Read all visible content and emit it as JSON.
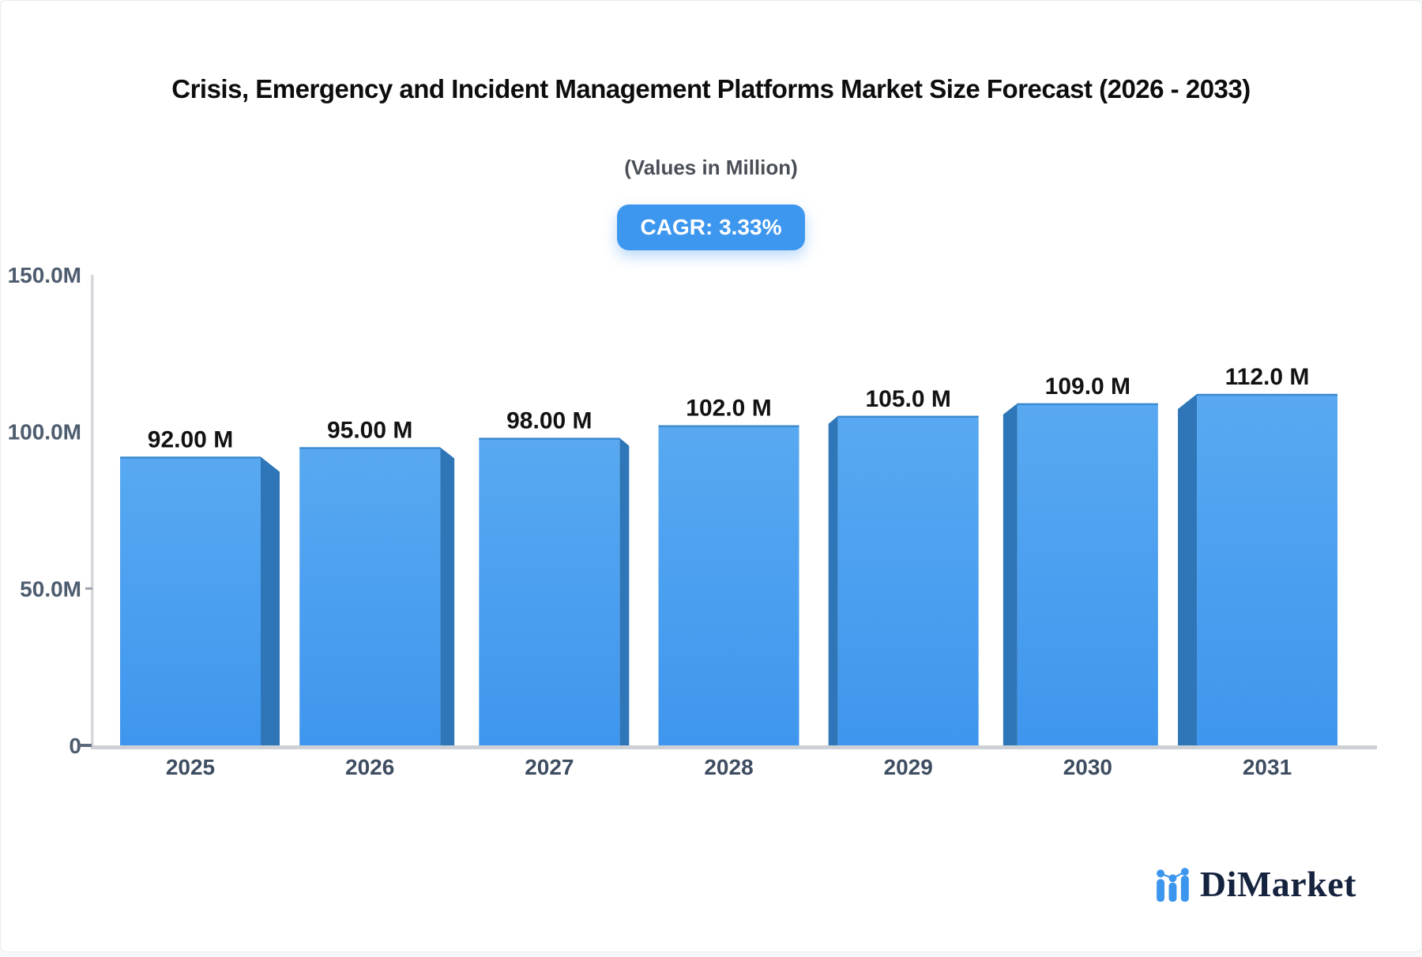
{
  "page": {
    "title": "Crisis, Emergency and Incident Management Platforms Market Size Forecast (2026 - 2033)",
    "subtitle": "(Values in Million)",
    "cagr_label": "CAGR: 3.33%"
  },
  "logo": {
    "text": "DiMarket",
    "icon": "bar-chart-logo-icon"
  },
  "colors": {
    "accent": "#3e97ef",
    "bar_gradient_top": "#58a9f1",
    "bar_gradient_bottom": "#3f96ee",
    "bar_side": "#2e76b7",
    "bar_top_edge": "#3b87ce",
    "x_axis_line": "#cdd0d5",
    "y_axis_line": "#d5d7db",
    "tick_label": "#4e5c6f",
    "tick_dash_zero": "#5c6978",
    "tick_dash_mid": "#98a1ac",
    "x_label": "#3e4d61",
    "value_label": "#121214",
    "badge_bg": "#3e97ef",
    "badge_text": "#ffffff",
    "logo_text": "#15233f",
    "logo_icon": "#3d96ee"
  },
  "chart_data": {
    "type": "bar",
    "title": "Crisis, Emergency and Incident Management Platforms Market Size Forecast (2026 - 2033)",
    "subtitle": "(Values in Million)",
    "xlabel": "",
    "ylabel": "",
    "categories": [
      "2025",
      "2026",
      "2027",
      "2028",
      "2029",
      "2030",
      "2031"
    ],
    "values": [
      92,
      95,
      98,
      102,
      105,
      109,
      112
    ],
    "value_labels": [
      "92.00 M",
      "95.00 M",
      "98.00 M",
      "102.0 M",
      "105.0 M",
      "109.0 M",
      "112.0 M"
    ],
    "ylim": [
      0,
      150
    ],
    "y_ticks": [
      {
        "value": 150,
        "label": "150.0M",
        "dash": "none"
      },
      {
        "value": 100,
        "label": "100.0M",
        "dash": "none"
      },
      {
        "value": 50,
        "label": "50.0M",
        "dash": "short"
      },
      {
        "value": 0,
        "label": "0",
        "dash": "long"
      }
    ],
    "grid": false,
    "legend": false,
    "bar_style": "3d-bevel",
    "annotation": "CAGR: 3.33%"
  }
}
